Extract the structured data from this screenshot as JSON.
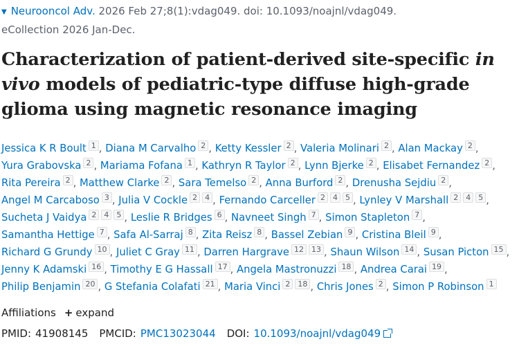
{
  "citation": {
    "journal": "Neurooncol Adv.",
    "details": " 2026 Feb 27;8(1):vdag049. doi: 10.1093/noajnl/vdag049.",
    "ecollection": "eCollection 2026 Jan-Dec."
  },
  "title": {
    "part1": "Characterization of patient-derived site-specific ",
    "italic1": "in vivo",
    "part2": " models of pediatric-type diffuse high-grade glioma using magnetic resonance imaging"
  },
  "authors": [
    {
      "name": "Jessica K R Boult",
      "affil": [
        "1"
      ]
    },
    {
      "name": "Diana M Carvalho",
      "affil": [
        "2"
      ]
    },
    {
      "name": "Ketty Kessler",
      "affil": [
        "2"
      ]
    },
    {
      "name": "Valeria Molinari",
      "affil": [
        "2"
      ]
    },
    {
      "name": "Alan Mackay",
      "affil": [
        "2"
      ]
    },
    {
      "name": "Yura Grabovska",
      "affil": [
        "2"
      ]
    },
    {
      "name": "Mariama Fofana",
      "affil": [
        "1"
      ]
    },
    {
      "name": "Kathryn R Taylor",
      "affil": [
        "2"
      ]
    },
    {
      "name": "Lynn Bjerke",
      "affil": [
        "2"
      ]
    },
    {
      "name": "Elisabet Fernandez",
      "affil": [
        "2"
      ]
    },
    {
      "name": "Rita Pereira",
      "affil": [
        "2"
      ]
    },
    {
      "name": "Matthew Clarke",
      "affil": [
        "2"
      ]
    },
    {
      "name": "Sara Temelso",
      "affil": [
        "2"
      ]
    },
    {
      "name": "Anna Burford",
      "affil": [
        "2"
      ]
    },
    {
      "name": "Drenusha Sejdiu",
      "affil": [
        "2"
      ]
    },
    {
      "name": "Angel M Carcaboso",
      "affil": [
        "3"
      ]
    },
    {
      "name": "Julia V Cockle",
      "affil": [
        "2",
        "4"
      ]
    },
    {
      "name": "Fernando Carceller",
      "affil": [
        "2",
        "4",
        "5"
      ]
    },
    {
      "name": "Lynley V Marshall",
      "affil": [
        "2",
        "4",
        "5"
      ]
    },
    {
      "name": "Sucheta J Vaidya",
      "affil": [
        "2",
        "4",
        "5"
      ]
    },
    {
      "name": "Leslie R Bridges",
      "affil": [
        "6"
      ]
    },
    {
      "name": "Navneet Singh",
      "affil": [
        "7"
      ]
    },
    {
      "name": "Simon Stapleton",
      "affil": [
        "7"
      ]
    },
    {
      "name": "Samantha Hettige",
      "affil": [
        "7"
      ]
    },
    {
      "name": "Safa Al-Sarraj",
      "affil": [
        "8"
      ]
    },
    {
      "name": "Zita Reisz",
      "affil": [
        "8"
      ]
    },
    {
      "name": "Bassel Zebian",
      "affil": [
        "9"
      ]
    },
    {
      "name": "Cristina Bleil",
      "affil": [
        "9"
      ]
    },
    {
      "name": "Richard G Grundy",
      "affil": [
        "10"
      ]
    },
    {
      "name": "Juliet C Gray",
      "affil": [
        "11"
      ]
    },
    {
      "name": "Darren Hargrave",
      "affil": [
        "12",
        "13"
      ]
    },
    {
      "name": "Shaun Wilson",
      "affil": [
        "14"
      ]
    },
    {
      "name": "Susan Picton",
      "affil": [
        "15"
      ]
    },
    {
      "name": "Jenny K Adamski",
      "affil": [
        "16"
      ]
    },
    {
      "name": "Timothy E G Hassall",
      "affil": [
        "17"
      ]
    },
    {
      "name": "Angela Mastronuzzi",
      "affil": [
        "18"
      ]
    },
    {
      "name": "Andrea Carai",
      "affil": [
        "19"
      ]
    },
    {
      "name": "Philip Benjamin",
      "affil": [
        "20"
      ]
    },
    {
      "name": "G Stefania Colafati",
      "affil": [
        "21"
      ]
    },
    {
      "name": "Maria Vinci",
      "affil": [
        "2",
        "18"
      ]
    },
    {
      "name": "Chris Jones",
      "affil": [
        "2"
      ]
    },
    {
      "name": "Simon P Robinson",
      "affil": [
        "1"
      ]
    }
  ],
  "author_separator": ", ",
  "affiliations": {
    "label": "Affiliations",
    "expand_symbol": "+",
    "expand_label": "expand"
  },
  "ids": {
    "pmid_label": "PMID:",
    "pmid": "41908145",
    "pmcid_label": "PMCID:",
    "pmcid": "PMC13023044",
    "doi_label": "DOI:",
    "doi": "10.1093/noajnl/vdag049"
  },
  "colors": {
    "link": "#0071bc",
    "muted": "#5b616b",
    "text": "#212121"
  }
}
